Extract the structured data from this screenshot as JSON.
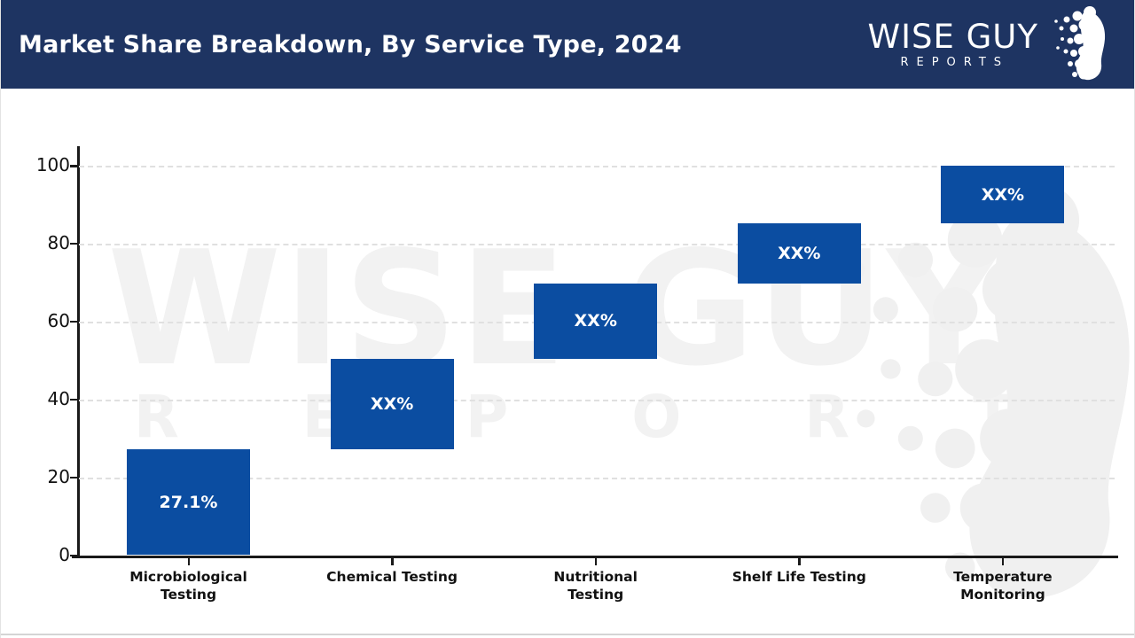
{
  "header": {
    "title": "Market Share Breakdown, By Service Type, 2024",
    "logo": {
      "line1": "WISE GUY",
      "line2": "REPORTS",
      "head_icon": "dotted-face-profile"
    }
  },
  "watermark": {
    "line1": "WISE GUY",
    "line2": "R E P O R T S",
    "head_icon": "dotted-face-profile"
  },
  "colors": {
    "header_bg": "#1e3462",
    "bar_fill": "#0b4da1",
    "bar_label_text": "#ffffff",
    "axis": "#1a1a1a",
    "gridline": "#e0e0e0",
    "watermark": "#f2f2f2"
  },
  "chart_data": {
    "type": "bar",
    "subtype": "waterfall",
    "title": "Market Share Breakdown, By Service Type, 2024",
    "xlabel": "",
    "ylabel": "",
    "ylim": [
      0,
      105
    ],
    "y_ticks": [
      0,
      20,
      40,
      60,
      80,
      100
    ],
    "grid": "dashed-horizontal",
    "legend": "none",
    "categories": [
      "Microbiological Testing",
      "Chemical Testing",
      "Nutritional Testing",
      "Shelf Life Testing",
      "Temperature Monitoring"
    ],
    "category_label_lines": [
      [
        "Microbiological",
        "Testing"
      ],
      [
        "Chemical Testing"
      ],
      [
        "Nutritional",
        "Testing"
      ],
      [
        "Shelf Life Testing"
      ],
      [
        "Temperature",
        "Monitoring"
      ]
    ],
    "bars": [
      {
        "category": "Microbiological Testing",
        "start": 0,
        "end": 27.1,
        "value": 27.1,
        "label": "27.1%"
      },
      {
        "category": "Chemical Testing",
        "start": 27.1,
        "end": 50.5,
        "value": 23.4,
        "label": "XX%"
      },
      {
        "category": "Nutritional Testing",
        "start": 50.5,
        "end": 69.8,
        "value": 19.3,
        "label": "XX%"
      },
      {
        "category": "Shelf Life Testing",
        "start": 69.8,
        "end": 85.2,
        "value": 15.4,
        "label": "XX%"
      },
      {
        "category": "Temperature Monitoring",
        "start": 85.2,
        "end": 100,
        "value": 14.8,
        "label": "XX%"
      }
    ]
  }
}
